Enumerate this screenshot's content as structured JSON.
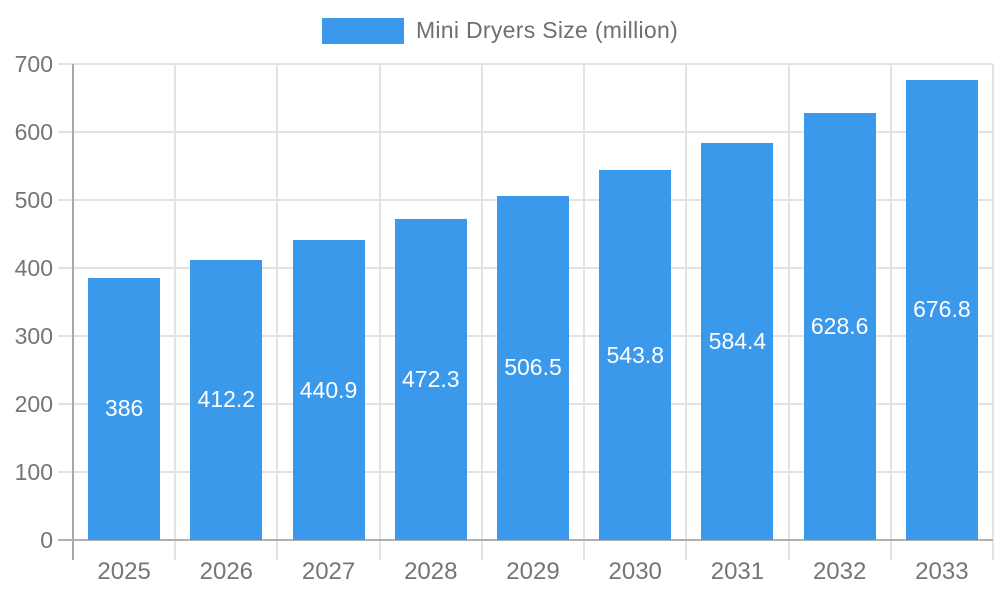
{
  "legend": {
    "series_label": "Mini Dryers Size (million)"
  },
  "chart_data": {
    "type": "bar",
    "title": "",
    "series_name": "Mini Dryers Size (million)",
    "categories": [
      "2025",
      "2026",
      "2027",
      "2028",
      "2029",
      "2030",
      "2031",
      "2032",
      "2033"
    ],
    "values": [
      386,
      412.2,
      440.9,
      472.3,
      506.5,
      543.8,
      584.4,
      628.6,
      676.8
    ],
    "data_labels": [
      "386",
      "412.2",
      "440.9",
      "472.3",
      "506.5",
      "543.8",
      "584.4",
      "628.6",
      "676.8"
    ],
    "xlabel": "",
    "ylabel": "",
    "ylim": [
      0,
      700
    ],
    "yticks": [
      0,
      100,
      200,
      300,
      400,
      500,
      600,
      700
    ],
    "grid": true,
    "legend_position": "top",
    "colors": {
      "bar": "#3B99EC",
      "bar_label": "#FFFFFF",
      "axis_text": "#757575",
      "grid_line": "#E3E3E3",
      "x_axis_line": "#B0B0B0",
      "y_axis_line": "#A8A8A8"
    }
  }
}
